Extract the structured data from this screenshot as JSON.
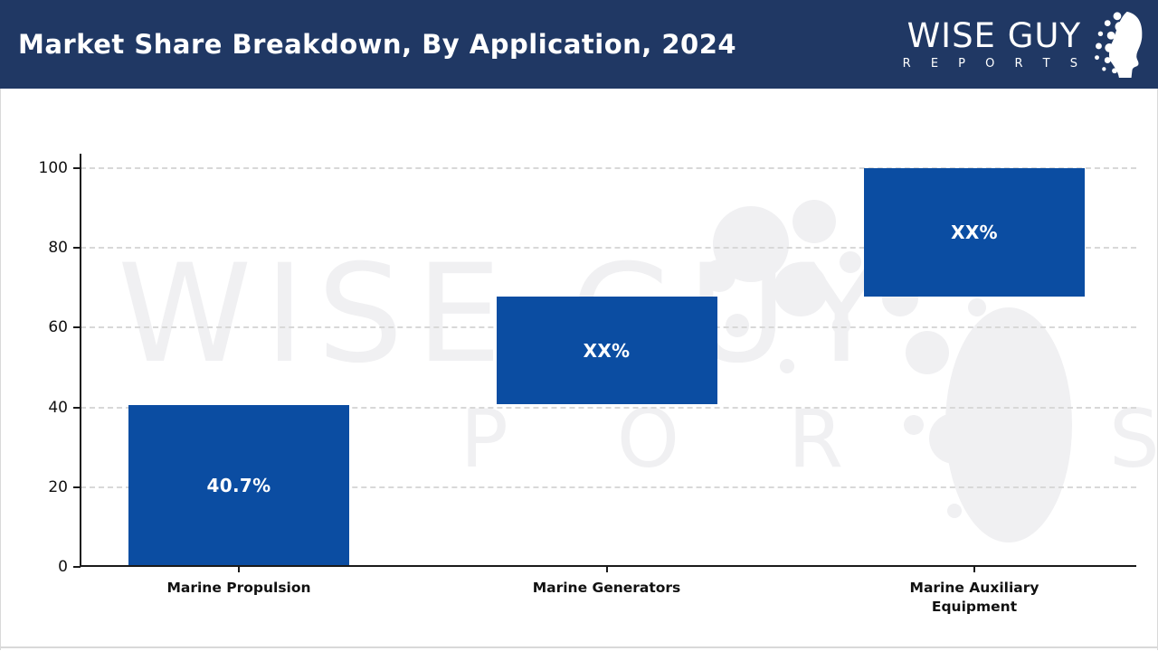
{
  "header": {
    "title": "Market Share Breakdown, By Application, 2024",
    "logo": {
      "name": "WISE GUY",
      "subtitle": "R E P O R T S"
    }
  },
  "watermark": {
    "line1": "WISE GUY",
    "line2": "R E P O R T S"
  },
  "chart_data": {
    "type": "bar",
    "variant": "floating-segment-waterfall",
    "title": "Market Share Breakdown, By Application, 2024",
    "categories": [
      "Marine Propulsion",
      "Marine Generators",
      "Marine Auxiliary Equipment"
    ],
    "segments": [
      {
        "category": "Marine Propulsion",
        "start": 0,
        "end": 40.7,
        "label": "40.7%"
      },
      {
        "category": "Marine Generators",
        "start": 40.7,
        "end": 67.9,
        "label": "XX%"
      },
      {
        "category": "Marine Auxiliary Equipment",
        "start": 67.9,
        "end": 100,
        "label": "XX%"
      }
    ],
    "ylim": [
      0,
      100
    ],
    "yticks": [
      0,
      20,
      40,
      60,
      80,
      100
    ],
    "xlabel": "",
    "ylabel": "",
    "grid": "horizontal-dashed",
    "legend": "none",
    "colors": {
      "bar": "#0b4da2",
      "bar_label": "#ffffff",
      "axis": "#1a1a1a",
      "tick_label": "#111111",
      "gridline": "#d8d8d8",
      "header_bg": "#203864",
      "watermark": "#f0f0f2"
    }
  }
}
